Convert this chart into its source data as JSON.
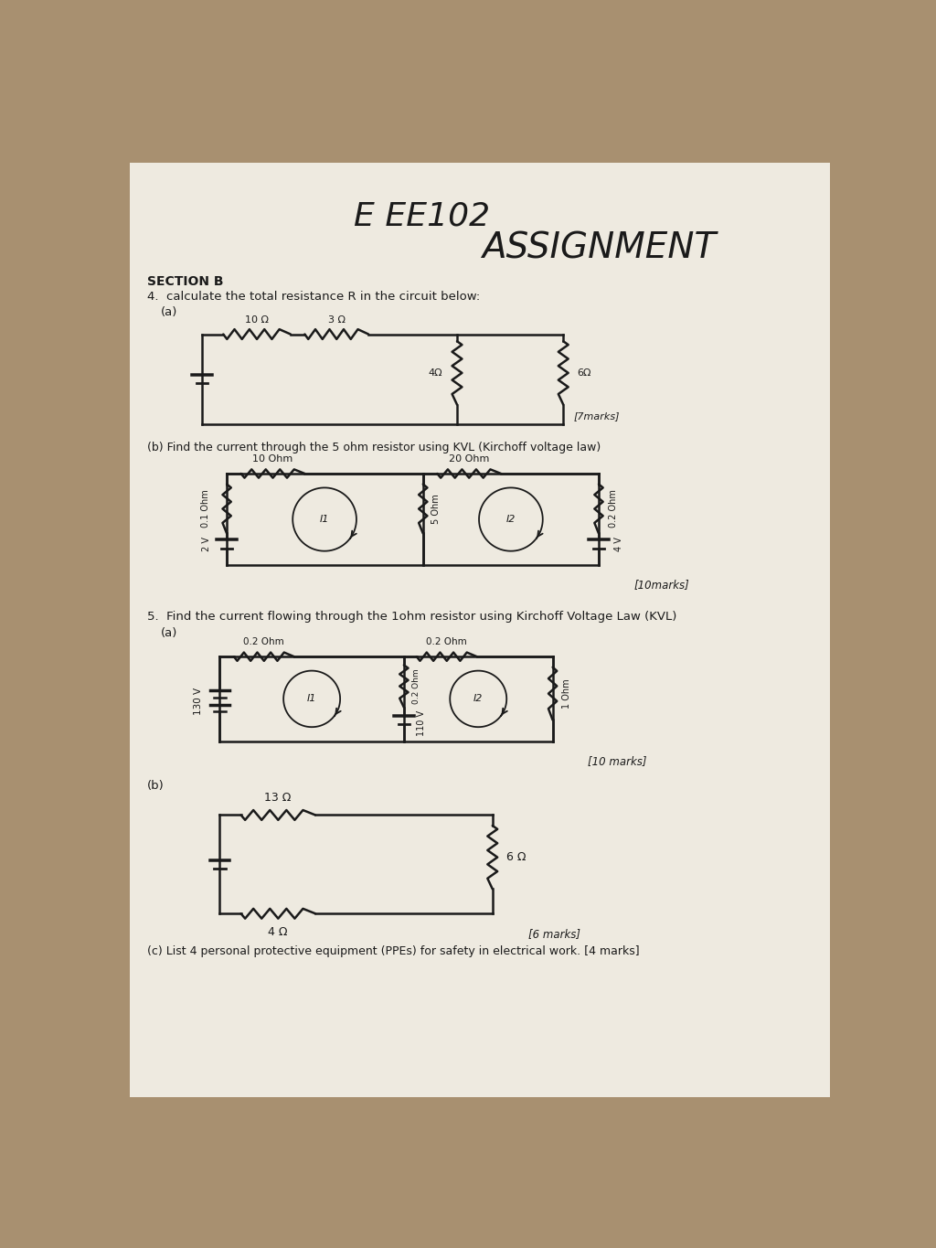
{
  "bg_color": "#a89070",
  "paper_color": "#eeeae0",
  "title_line1": "E EE102",
  "title_line2": "ASSIGNMENT",
  "section_b": "SECTION B",
  "q4_text": "4.  calculate the total resistance R in the circuit below:",
  "qa_label": "(a)",
  "marks_4a": "[7marks]",
  "q4b_text": "(b) Find the current through the 5 ohm resistor using KVL (Kirchoff voltage law)",
  "marks_4b": "[10marks]",
  "q5_text": "5.  Find the current flowing through the 1ohm resistor using Kirchoff Voltage Law (KVL)",
  "q5a_label": "(a)",
  "marks_5a": "[10 marks]",
  "q5b_label": "(b)",
  "marks_5b": "[6 marks]",
  "qc_text": "(c) List 4 personal protective equipment (PPEs) for safety in electrical work. [4 marks]"
}
